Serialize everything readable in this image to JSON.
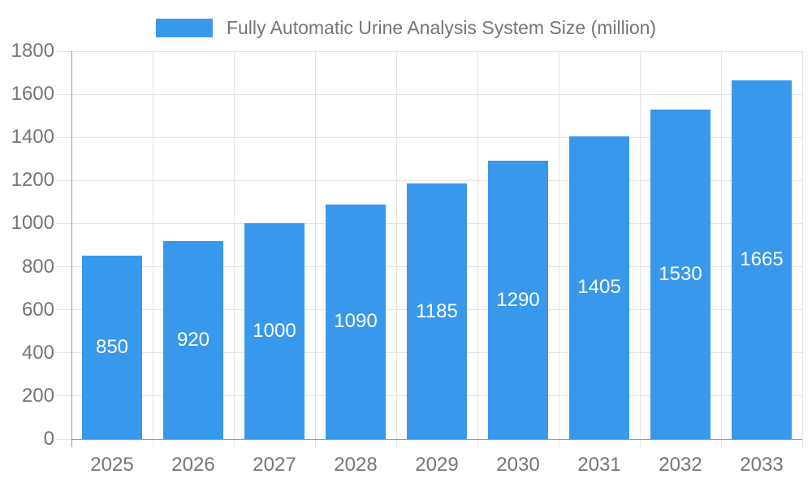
{
  "chart_data": {
    "type": "bar",
    "title": "Fully Automatic Urine Analysis System Size (million)",
    "legend_label": "Fully Automatic Urine Analysis System Size (million)",
    "legend_position": "top-center",
    "categories": [
      "2025",
      "2026",
      "2027",
      "2028",
      "2029",
      "2030",
      "2031",
      "2032",
      "2033"
    ],
    "series": [
      {
        "name": "Fully Automatic Urine Analysis System Size (million)",
        "values": [
          850,
          920,
          1000,
          1090,
          1185,
          1290,
          1405,
          1530,
          1665
        ]
      }
    ],
    "xlabel": "",
    "ylabel": "",
    "ylim": [
      0,
      1800
    ],
    "y_ticks": [
      0,
      200,
      400,
      600,
      800,
      1000,
      1200,
      1400,
      1600,
      1800
    ],
    "grid": "horizontal and vertical light gray lines",
    "data_labels": "value shown in white at vertical center of each bar"
  },
  "colors": {
    "bar": "#3898ec",
    "grid": "#e4e4e4",
    "axis": "#9a9a9a",
    "axis_text": "#757575",
    "bar_label_text": "#ffffff",
    "background": "#ffffff"
  }
}
